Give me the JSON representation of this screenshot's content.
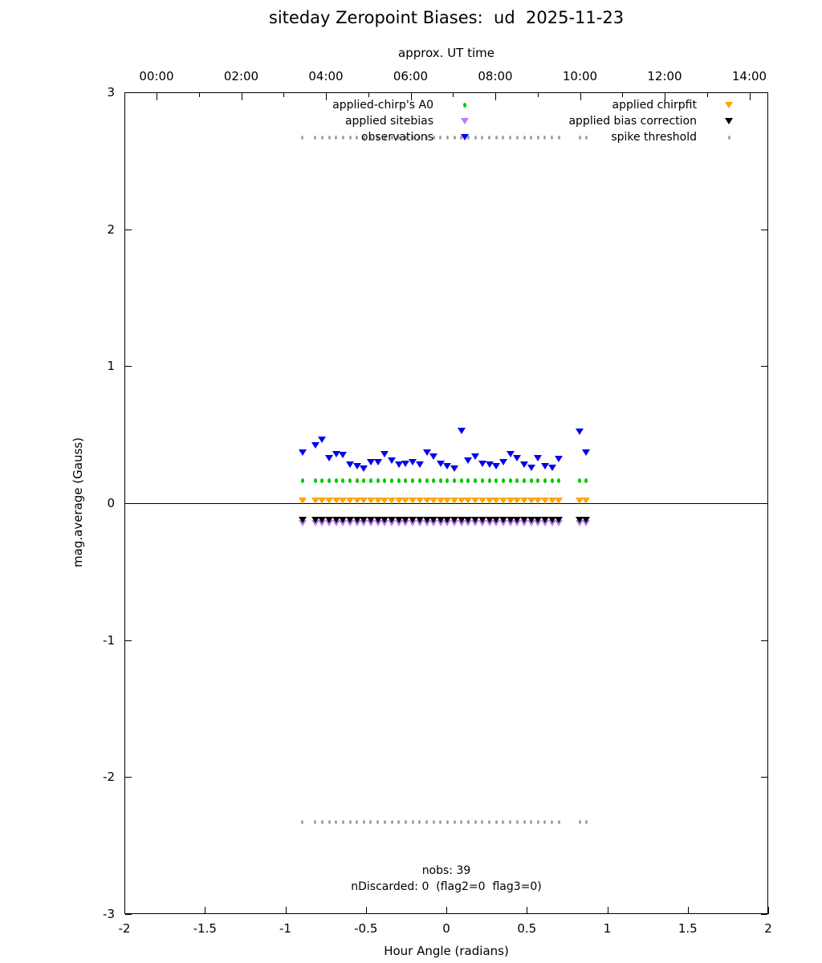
{
  "title": "siteday Zeropoint Biases:  ud  2025-11-23",
  "axes": {
    "top": {
      "label": "approx. UT time",
      "ticks": [
        {
          "label": "00:00",
          "hour": 0
        },
        {
          "label": "02:00",
          "hour": 2
        },
        {
          "label": "04:00",
          "hour": 4
        },
        {
          "label": "06:00",
          "hour": 6
        },
        {
          "label": "08:00",
          "hour": 8
        },
        {
          "label": "10:00",
          "hour": 10
        },
        {
          "label": "12:00",
          "hour": 12
        },
        {
          "label": "14:00",
          "hour": 14
        }
      ],
      "minor_hours": [
        1,
        3,
        5,
        7,
        9,
        11,
        13
      ]
    },
    "bottom": {
      "label": "Hour Angle (radians)",
      "ticks": [
        {
          "label": "-2",
          "value": -2
        },
        {
          "label": "-1.5",
          "value": -1.5
        },
        {
          "label": "-1",
          "value": -1
        },
        {
          "label": "-0.5",
          "value": -0.5
        },
        {
          "label": "0",
          "value": 0
        },
        {
          "label": "0.5",
          "value": 0.5
        },
        {
          "label": "1",
          "value": 1
        },
        {
          "label": "1.5",
          "value": 1.5
        },
        {
          "label": "2",
          "value": 2
        }
      ]
    },
    "left": {
      "label": "mag.average (Gauss)",
      "ticks": [
        {
          "label": "3",
          "value": 3
        },
        {
          "label": "2",
          "value": 2
        },
        {
          "label": "1",
          "value": 1
        },
        {
          "label": "0",
          "value": 0
        },
        {
          "label": "-1",
          "value": -1
        },
        {
          "label": "-2",
          "value": -2
        },
        {
          "label": "-3",
          "value": -3
        }
      ]
    }
  },
  "legend": {
    "items": [
      {
        "label": "applied-chirp's A0",
        "marker": "dot",
        "color": "#00c800"
      },
      {
        "label": "applied sitebias",
        "marker": "triangle-down",
        "color": "#b77ef2"
      },
      {
        "label": "observations",
        "marker": "triangle-down",
        "color": "#0000ee"
      },
      {
        "label": "applied chirpfit",
        "marker": "triangle-down",
        "color": "#ffa500"
      },
      {
        "label": "applied bias correction",
        "marker": "triangle-down",
        "color": "#000000"
      },
      {
        "label": "spike threshold",
        "marker": "small-dot",
        "color": "#a0a0a0"
      }
    ]
  },
  "annotations": {
    "nobs": "nobs: 39",
    "ndiscarded": "nDiscarded: 0  (flag2=0  flag3=0)"
  },
  "chart_data": {
    "type": "scatter",
    "title": "siteday Zeropoint Biases:  ud  2025-11-23",
    "xlabel": "Hour Angle (radians)",
    "ylabel": "mag.average (Gauss)",
    "x2label": "approx. UT time",
    "xlim": [
      -2,
      2
    ],
    "ylim": [
      -3,
      3
    ],
    "grid": false,
    "nobs": 39,
    "nDiscarded": 0,
    "x": [
      -0.893,
      -0.815,
      -0.772,
      -0.728,
      -0.685,
      -0.642,
      -0.598,
      -0.555,
      -0.512,
      -0.469,
      -0.425,
      -0.382,
      -0.339,
      -0.296,
      -0.252,
      -0.209,
      -0.166,
      -0.122,
      -0.079,
      -0.036,
      0.007,
      0.051,
      0.094,
      0.137,
      0.181,
      0.224,
      0.267,
      0.31,
      0.354,
      0.397,
      0.44,
      0.484,
      0.527,
      0.57,
      0.613,
      0.657,
      0.7,
      0.83,
      0.868
    ],
    "series": [
      {
        "name": "spike threshold",
        "marker": "small-dot",
        "color": "#a0a0a0",
        "y_levels": [
          2.67,
          -2.33
        ]
      },
      {
        "name": "applied sitebias",
        "marker": "triangle-down",
        "color": "#b77ef2",
        "y_const": -0.145
      },
      {
        "name": "applied bias correction",
        "marker": "triangle-down",
        "color": "#000000",
        "y_const": -0.125
      },
      {
        "name": "applied-chirp's A0",
        "marker": "dot",
        "color": "#00c800",
        "y_const": 0.165
      },
      {
        "name": "applied chirpfit",
        "marker": "triangle-down",
        "color": "#ffa500",
        "y_const": 0.02
      },
      {
        "name": "observations",
        "marker": "triangle-down",
        "color": "#0000ee",
        "y": [
          0.37,
          0.42,
          0.46,
          0.33,
          0.36,
          0.35,
          0.28,
          0.27,
          0.25,
          0.3,
          0.3,
          0.36,
          0.31,
          0.28,
          0.29,
          0.3,
          0.28,
          0.37,
          0.34,
          0.29,
          0.27,
          0.25,
          0.53,
          0.31,
          0.34,
          0.29,
          0.28,
          0.27,
          0.3,
          0.36,
          0.33,
          0.28,
          0.26,
          0.33,
          0.27,
          0.26,
          0.32,
          0.52,
          0.37
        ]
      }
    ]
  }
}
